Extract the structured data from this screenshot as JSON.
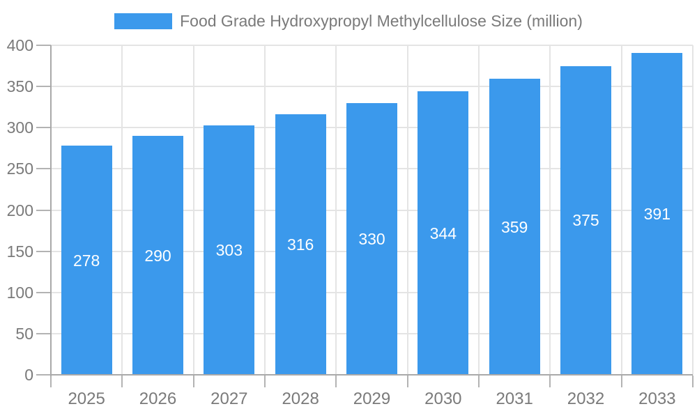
{
  "chart_data": {
    "type": "bar",
    "title": "Food Grade Hydroxypropyl Methylcellulose Size (million)",
    "categories": [
      "2025",
      "2026",
      "2027",
      "2028",
      "2029",
      "2030",
      "2031",
      "2032",
      "2033"
    ],
    "values": [
      278,
      290,
      303,
      316,
      330,
      344,
      359,
      375,
      391
    ],
    "bar_labels": [
      "278",
      "290",
      "303",
      "316",
      "330",
      "344",
      "359",
      "375",
      "391"
    ],
    "xlabel": "",
    "ylabel": "",
    "ylim": [
      0,
      400
    ],
    "ytick_step": 50,
    "ytick_labels": [
      "0",
      "50",
      "100",
      "150",
      "200",
      "250",
      "300",
      "350",
      "400"
    ],
    "grid": true,
    "legend_position": "top",
    "series_color": "#3b99ec",
    "bar_label_color": "#ffffff",
    "gridline_color": "#e4e4e4",
    "axis_color": "#a9a9a9",
    "tick_color": "#b3b3b3",
    "axis_label_color": "#7a7a7a",
    "background_color": "#ffffff"
  }
}
